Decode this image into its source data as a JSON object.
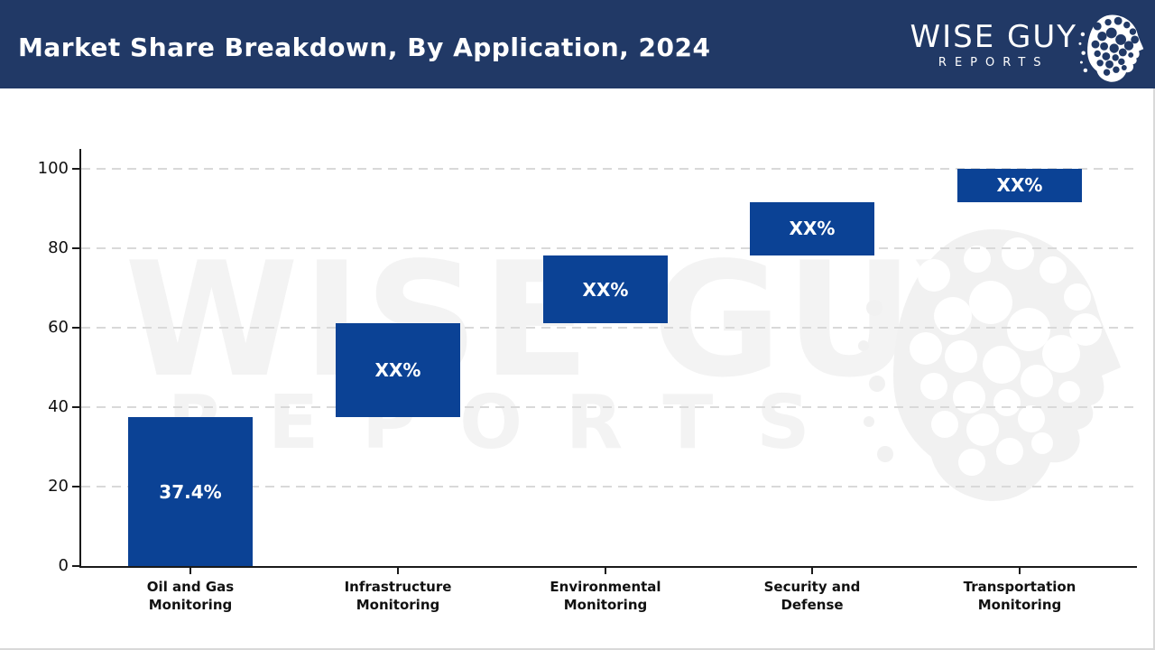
{
  "header": {
    "title": "Market Share Breakdown, By Application, 2024",
    "logo": {
      "wordmark": "WISE GUY",
      "sub": "REPORTS"
    }
  },
  "watermark": {
    "line1": "WISE GUY",
    "line2": "REPORTS"
  },
  "colors": {
    "header_bg": "#213966",
    "bar": "#0b4295",
    "grid": "#d9d9d9",
    "axis": "#1a1a1a",
    "watermark": "#f3f3f3"
  },
  "chart_data": {
    "type": "bar",
    "subtype": "waterfall",
    "title": "Market Share Breakdown, By Application, 2024",
    "categories": [
      "Oil and Gas\nMonitoring",
      "Infrastructure\nMonitoring",
      "Environmental\nMonitoring",
      "Security and\nDefense",
      "Transportation\nMonitoring"
    ],
    "segments": [
      {
        "start": 0,
        "end": 37.4,
        "label": "37.4%"
      },
      {
        "start": 37.4,
        "end": 61.2,
        "label": "XX%"
      },
      {
        "start": 61.2,
        "end": 78.1,
        "label": "XX%"
      },
      {
        "start": 78.1,
        "end": 91.7,
        "label": "XX%"
      },
      {
        "start": 91.7,
        "end": 100.0,
        "label": "XX%"
      }
    ],
    "yticks": [
      0,
      20,
      40,
      60,
      80,
      100
    ],
    "ylim": [
      0,
      105
    ],
    "xlabel": "",
    "ylabel": "",
    "grid": "dashed-horizontal",
    "legend": "none"
  }
}
